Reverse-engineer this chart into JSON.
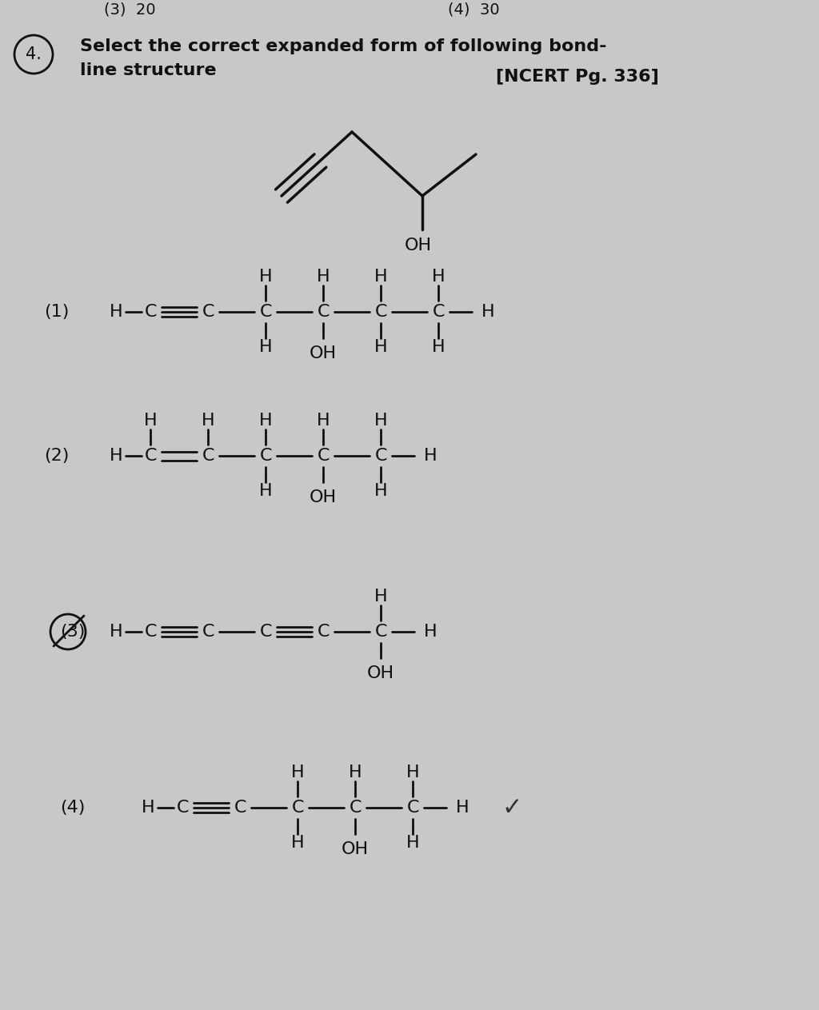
{
  "bg_color": "#c8c8c8",
  "font_color": "#111111",
  "top_left_text": "(3)  20",
  "top_right_text": "(4)  30",
  "question_num": "4.",
  "title_line1": "Select the correct expanded form of following bond-",
  "title_line2": "line structure",
  "reference": "[NCERT Pg. 336]",
  "figsize": [
    10.24,
    12.63
  ],
  "dpi": 100,
  "opt1_label": "(1)",
  "opt2_label": "(2)",
  "opt3_label": "(3)",
  "opt4_label": "(4)",
  "checkmark": "✓"
}
